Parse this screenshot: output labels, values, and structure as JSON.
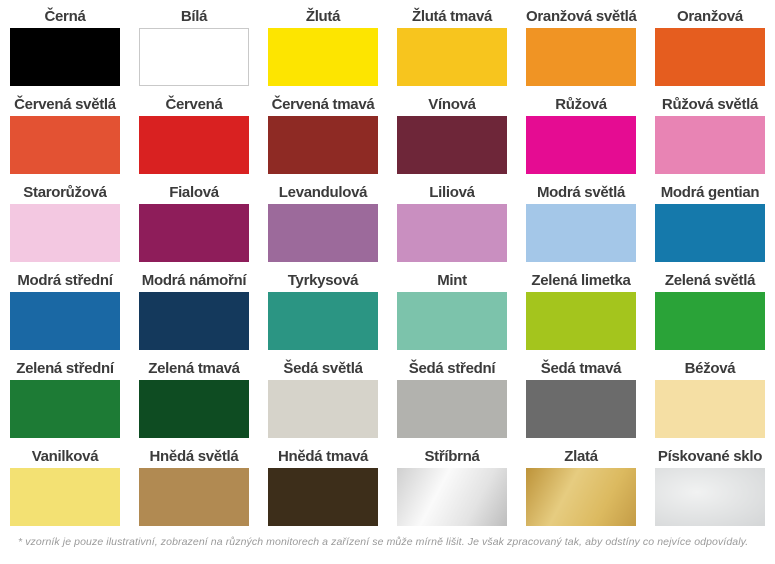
{
  "palette": {
    "swatches": [
      {
        "label": "Černá",
        "finish": "solid",
        "colors": [
          "#000000"
        ]
      },
      {
        "label": "Bílá",
        "finish": "solid",
        "colors": [
          "#ffffff"
        ],
        "border": true
      },
      {
        "label": "Žlutá",
        "finish": "solid",
        "colors": [
          "#fde500"
        ]
      },
      {
        "label": "Žlutá tmavá",
        "finish": "solid",
        "colors": [
          "#f7c51e"
        ]
      },
      {
        "label": "Oranžová světlá",
        "finish": "solid",
        "colors": [
          "#f09424"
        ]
      },
      {
        "label": "Oranžová",
        "finish": "solid",
        "colors": [
          "#e55d1f"
        ]
      },
      {
        "label": "Červená světlá",
        "finish": "solid",
        "colors": [
          "#e35233"
        ]
      },
      {
        "label": "Červená",
        "finish": "solid",
        "colors": [
          "#d92121"
        ]
      },
      {
        "label": "Červená tmavá",
        "finish": "solid",
        "colors": [
          "#8e2a24"
        ]
      },
      {
        "label": "Vínová",
        "finish": "solid",
        "colors": [
          "#6e2639"
        ]
      },
      {
        "label": "Růžová",
        "finish": "solid",
        "colors": [
          "#e50c92"
        ]
      },
      {
        "label": "Růžová světlá",
        "finish": "solid",
        "colors": [
          "#e884b4"
        ]
      },
      {
        "label": "Starorůžová",
        "finish": "solid",
        "colors": [
          "#f3c8e1"
        ]
      },
      {
        "label": "Fialová",
        "finish": "solid",
        "colors": [
          "#8e1d5a"
        ]
      },
      {
        "label": "Levandulová",
        "finish": "solid",
        "colors": [
          "#9c6a9b"
        ]
      },
      {
        "label": "Liliová",
        "finish": "solid",
        "colors": [
          "#c98fc0"
        ]
      },
      {
        "label": "Modrá světlá",
        "finish": "solid",
        "colors": [
          "#a4c7e8"
        ]
      },
      {
        "label": "Modrá gentian",
        "finish": "solid",
        "colors": [
          "#1579ab"
        ]
      },
      {
        "label": "Modrá střední",
        "finish": "solid",
        "colors": [
          "#1a68a4"
        ]
      },
      {
        "label": "Modrá námořní",
        "finish": "solid",
        "colors": [
          "#14395c"
        ]
      },
      {
        "label": "Tyrkysová",
        "finish": "solid",
        "colors": [
          "#2b9583"
        ]
      },
      {
        "label": "Mint",
        "finish": "solid",
        "colors": [
          "#7cc3ab"
        ]
      },
      {
        "label": "Zelená limetka",
        "finish": "solid",
        "colors": [
          "#a4c51d"
        ]
      },
      {
        "label": "Zelená světlá",
        "finish": "solid",
        "colors": [
          "#2aa338"
        ]
      },
      {
        "label": "Zelená střední",
        "finish": "solid",
        "colors": [
          "#1d7b35"
        ]
      },
      {
        "label": "Zelená tmavá",
        "finish": "solid",
        "colors": [
          "#0e4c22"
        ]
      },
      {
        "label": "Šedá světlá",
        "finish": "solid",
        "colors": [
          "#d6d3ca"
        ]
      },
      {
        "label": "Šedá střední",
        "finish": "solid",
        "colors": [
          "#b2b2ae"
        ]
      },
      {
        "label": "Šedá tmavá",
        "finish": "solid",
        "colors": [
          "#6b6b6b"
        ]
      },
      {
        "label": "Béžová",
        "finish": "solid",
        "colors": [
          "#f5dfa4"
        ]
      },
      {
        "label": "Vanilková",
        "finish": "solid",
        "colors": [
          "#f3e173"
        ]
      },
      {
        "label": "Hnědá světlá",
        "finish": "solid",
        "colors": [
          "#b18a52"
        ]
      },
      {
        "label": "Hnědá tmavá",
        "finish": "solid",
        "colors": [
          "#3d2e1a"
        ]
      },
      {
        "label": "Stříbrná",
        "finish": "metallic",
        "colors": [
          "#cfcfcf",
          "#fafafa",
          "#e3e3e3",
          "#bdbdbd"
        ]
      },
      {
        "label": "Zlatá",
        "finish": "metallic",
        "colors": [
          "#bd9339",
          "#e6cc80",
          "#dcba60",
          "#c49c46"
        ]
      },
      {
        "label": "Pískované sklo",
        "finish": "glass",
        "colors": [
          "#f1f2f2",
          "#d5d7d8"
        ]
      }
    ]
  },
  "footnote": "* vzorník je pouze ilustrativní, zobrazení na různých monitorech a zařízení se může mírně lišit. Je však zpracovaný tak, aby odstíny co nejvíce odpovídaly."
}
